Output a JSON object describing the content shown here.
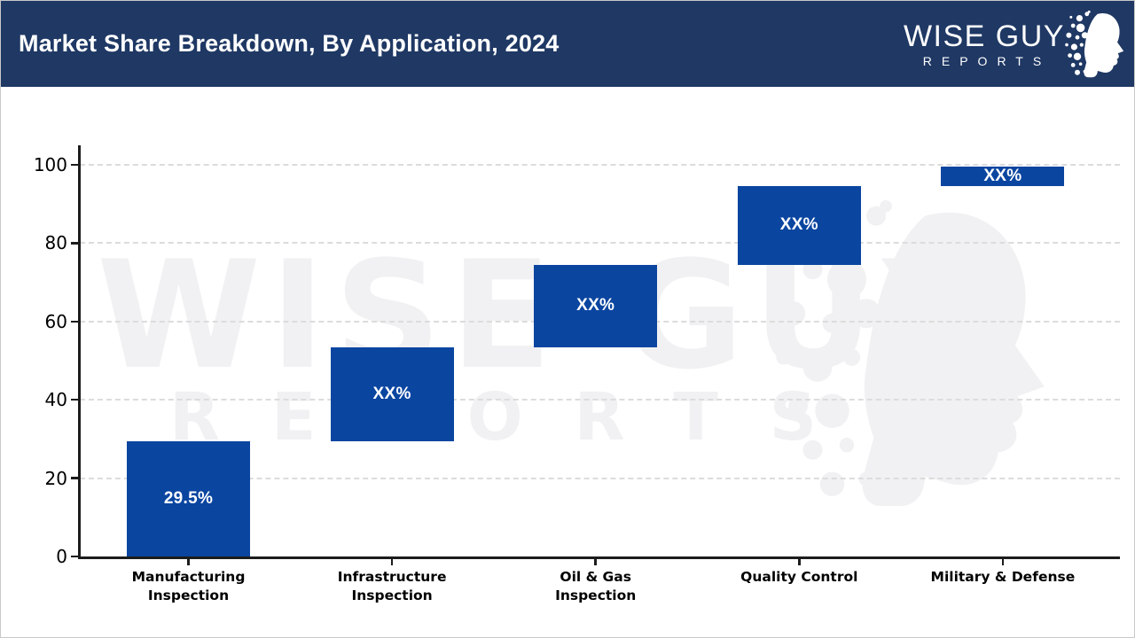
{
  "header": {
    "title": "Market Share Breakdown, By Application, 2024",
    "bg_color": "#1f3864",
    "logo": {
      "line1": "WISE GUY",
      "line2": "REPORTS"
    }
  },
  "watermark": {
    "line1": "WISE GUY",
    "line2": "REPORTS"
  },
  "chart_data": {
    "type": "bar",
    "subtype": "waterfall",
    "title": "Market Share Breakdown, By Application, 2024",
    "xlabel": "",
    "ylabel": "",
    "ylim": [
      0,
      100
    ],
    "yticks": [
      0,
      20,
      40,
      60,
      80,
      100
    ],
    "ytick_labels": [
      "0",
      "20",
      "40",
      "60",
      "80",
      "100"
    ],
    "grid": "dashed-horizontal",
    "legend": "none",
    "bar_color": "#0a45a0",
    "bar_label_color": "#ffffff",
    "categories": [
      "Manufacturing\nInspection",
      "Infrastructure\nInspection",
      "Oil & Gas\nInspection",
      "Quality Control",
      "Military & Defense"
    ],
    "segments": [
      {
        "category": "Manufacturing\nInspection",
        "from": 0,
        "to": 29.5,
        "label": "29.5%"
      },
      {
        "category": "Infrastructure\nInspection",
        "from": 29.5,
        "to": 53.5,
        "label": "XX%"
      },
      {
        "category": "Oil & Gas\nInspection",
        "from": 53.5,
        "to": 74.5,
        "label": "XX%"
      },
      {
        "category": "Quality Control",
        "from": 74.5,
        "to": 94.5,
        "label": "XX%"
      },
      {
        "category": "Military & Defense",
        "from": 94.5,
        "to": 99.5,
        "label": "XX%"
      }
    ]
  }
}
